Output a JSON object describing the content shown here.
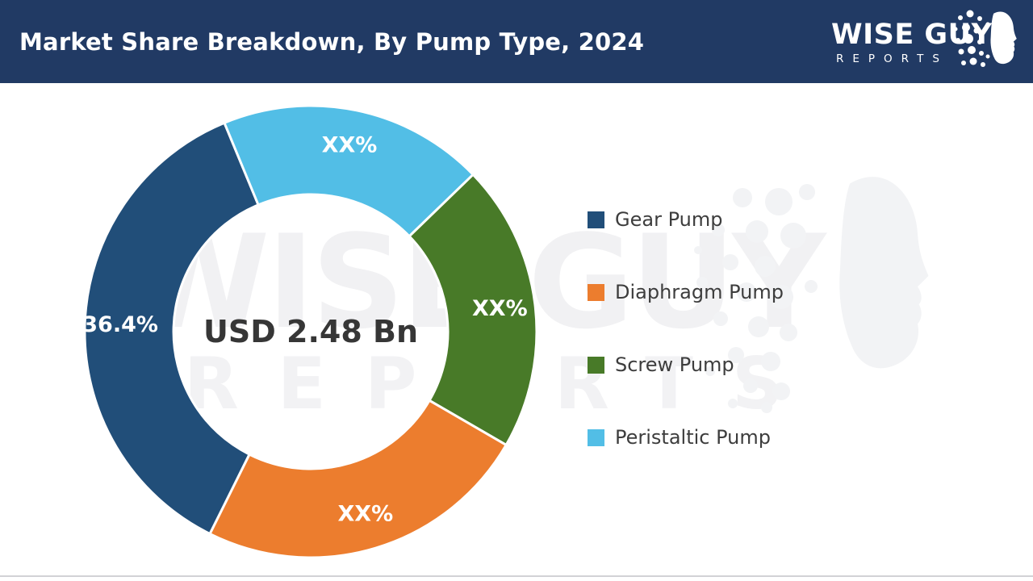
{
  "header": {
    "title": "Market Share Breakdown, By Pump Type, 2024",
    "logo": {
      "brand": "WISE GUY",
      "brand_sub": "REPORTS"
    }
  },
  "watermark": {
    "line1": "WISE GUY",
    "line2": "REPORTS"
  },
  "chart_data": {
    "type": "pie",
    "subtype": "donut",
    "title": "Market Share Breakdown, By Pump Type, 2024",
    "center_label": "USD 2.48 Bn",
    "legend_position": "right",
    "labels_shown_on_slices": true,
    "categories": [
      "Gear Pump",
      "Diaphragm Pump",
      "Screw Pump",
      "Peristaltic Pump"
    ],
    "segments": [
      {
        "name": "Gear Pump",
        "slice_label": "36.4%",
        "value_pct": 36.4,
        "color": "#214E79"
      },
      {
        "name": "Diaphragm Pump",
        "slice_label": "XX%",
        "value_pct": 24.0,
        "color": "#EC7D2E"
      },
      {
        "name": "Screw Pump",
        "slice_label": "XX%",
        "value_pct": 20.6,
        "color": "#487A28"
      },
      {
        "name": "Peristaltic Pump",
        "slice_label": "XX%",
        "value_pct": 19.0,
        "color": "#52BEE6"
      }
    ],
    "draw": {
      "start_angle_deg": 206.5,
      "clockwise_order": [
        0,
        3,
        2,
        1
      ]
    },
    "colors": {
      "header_bar": "#213A64",
      "slice_label_text": "#ffffff",
      "center_label_text": "#363636",
      "legend_text": "#3d3d3d",
      "watermark": "#f2f3f5"
    }
  }
}
